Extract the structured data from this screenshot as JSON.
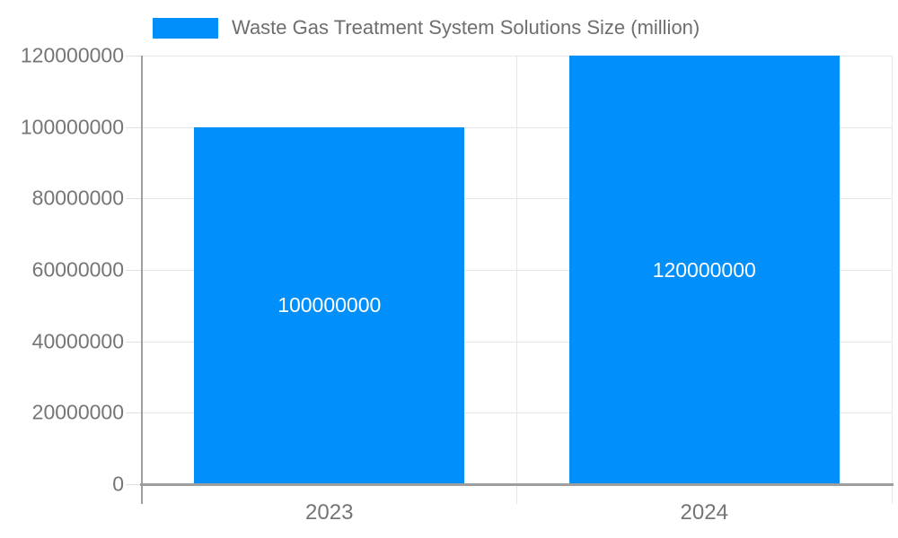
{
  "chart_data": {
    "type": "bar",
    "title": "Waste Gas Treatment System Solutions Size (million)",
    "categories": [
      "2023",
      "2024"
    ],
    "series": [
      {
        "name": "Waste Gas Treatment System Solutions Size (million)",
        "values": [
          100000000,
          120000000
        ],
        "data_labels": [
          "100000000",
          "120000000"
        ]
      }
    ],
    "xlabel": "",
    "ylabel": "",
    "ylim": [
      0,
      120000000
    ],
    "ytick_step": 20000000,
    "ytick_labels": [
      "0",
      "20000000",
      "40000000",
      "60000000",
      "80000000",
      "100000000",
      "120000000"
    ],
    "grid": true,
    "legend_position": "top",
    "colors": {
      "bar": "#008FFB",
      "gridline": "#e6e6e6",
      "axis_line": "#9e9e9e",
      "tick_label": "#757575",
      "legend_text": "#6e6e6e",
      "data_label": "#ffffff",
      "background": "#ffffff"
    }
  }
}
